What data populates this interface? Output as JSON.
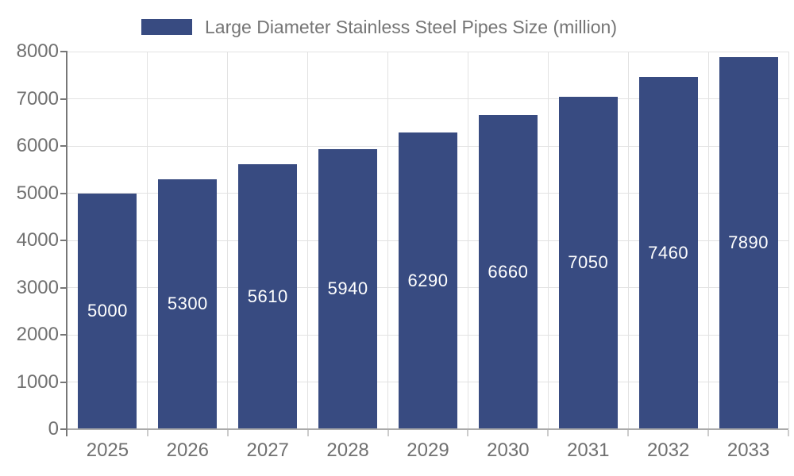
{
  "chart_data": {
    "type": "bar",
    "title": "Large Diameter Stainless Steel Pipes Size (million)",
    "categories": [
      "2025",
      "2026",
      "2027",
      "2028",
      "2029",
      "2030",
      "2031",
      "2032",
      "2033"
    ],
    "values": [
      5000,
      5300,
      5610,
      5940,
      6290,
      6660,
      7050,
      7460,
      7890
    ],
    "xlabel": "",
    "ylabel": "",
    "ylim": [
      0,
      8000
    ],
    "ytick_step": 1000,
    "grid": true,
    "legend_position": "top",
    "bar_labels_inside": true,
    "colors": {
      "bar": "#384B81",
      "bar_label": "#FFFFFF",
      "axis_text": "#707070",
      "legend_text": "#757575",
      "gridline": "#E2E2E2",
      "y_axis_line": "#777777",
      "x_axis_line": "#ABABAB",
      "x_tick": "#CCCCCC",
      "background": "#FFFFFF"
    }
  }
}
